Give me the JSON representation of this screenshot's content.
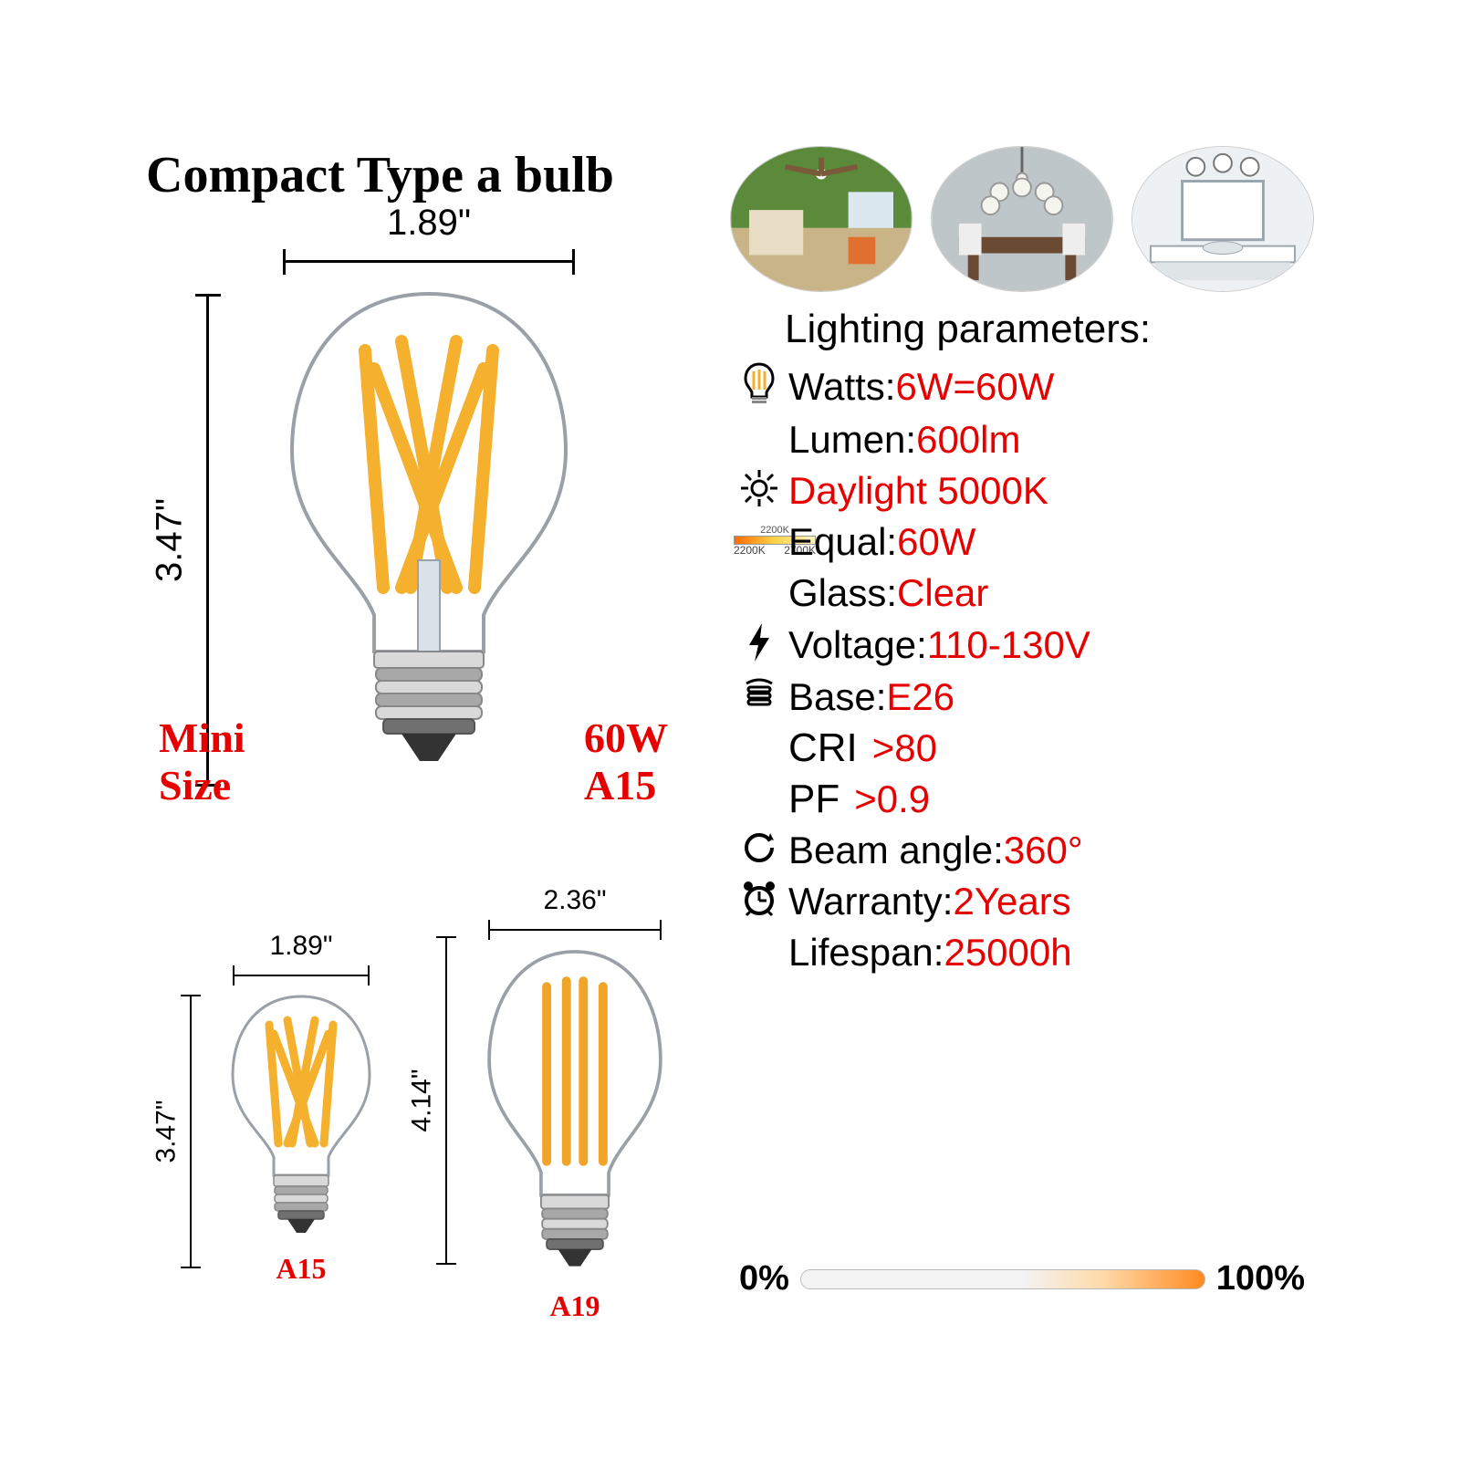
{
  "title": "Compact Type a bulb",
  "colors": {
    "accent_red": "#e60000",
    "black": "#000000",
    "filament": "#f5b02e",
    "filament_edge": "#e08a10",
    "glass_stroke": "#9aa0a6",
    "metal1": "#d9d9d9",
    "metal2": "#a8a8a8",
    "metal3": "#707070",
    "gradient_start": "#f3f3f3",
    "gradient_mid": "#ffd9a8",
    "gradient_end": "#ff8a1f"
  },
  "typography": {
    "title_family": "Times New Roman",
    "title_size_pt": 42,
    "dim_size_pt": 30,
    "param_size_pt": 32,
    "red_label_size_pt": 35
  },
  "main_bulb": {
    "width_in": "1.89\"",
    "height_in": "3.47\"",
    "labels_left": [
      "Mini",
      "Size"
    ],
    "labels_right": [
      "60W",
      "A15"
    ]
  },
  "compare": {
    "a15": {
      "width": "1.89\"",
      "height": "3.47\"",
      "tag": "A15"
    },
    "a19": {
      "width": "2.36\"",
      "height": "4.14\"",
      "tag": "A19"
    }
  },
  "thumbnails": [
    {
      "name": "bedroom-ceiling-fan",
      "bg1": "#5a8a3a",
      "bg2": "#c9b488"
    },
    {
      "name": "dining-chandelier",
      "bg1": "#bfc6c9",
      "bg2": "#6b4a34"
    },
    {
      "name": "bathroom-vanity",
      "bg1": "#eef1f3",
      "bg2": "#9aa6ad"
    }
  ],
  "params_title": "Lighting parameters:",
  "params": [
    {
      "icon": "bulb",
      "key": "Watts:",
      "val": "6W=60W"
    },
    {
      "icon": "",
      "key": "Lumen:",
      "val": "600lm"
    },
    {
      "icon": "sun",
      "key": "",
      "val": "Daylight 5000K",
      "fullred": true
    },
    {
      "icon": "temp",
      "key": "Equal:",
      "val": "60W"
    },
    {
      "icon": "",
      "key": "Glass:",
      "val": "Clear"
    },
    {
      "icon": "bolt",
      "key": "Voltage:",
      "val": "110-130V"
    },
    {
      "icon": "base",
      "key": "Base:",
      "val": "E26"
    },
    {
      "icon": "",
      "key": "CRI",
      "val": ">80",
      "bigk": true
    },
    {
      "icon": "",
      "key": "PF",
      "val": ">0.9",
      "bigk": true
    },
    {
      "icon": "circle",
      "key": "Beam angle:",
      "val": "360°"
    },
    {
      "icon": "clock",
      "key": "Warranty:",
      "val": "2Years"
    },
    {
      "icon": "",
      "key": "Lifespan:",
      "val": "25000h"
    }
  ],
  "temp_strip": {
    "top_label": "2200K",
    "left": "2200K",
    "right": "2700K"
  },
  "dimmer": {
    "min": "0%",
    "max": "100%"
  }
}
